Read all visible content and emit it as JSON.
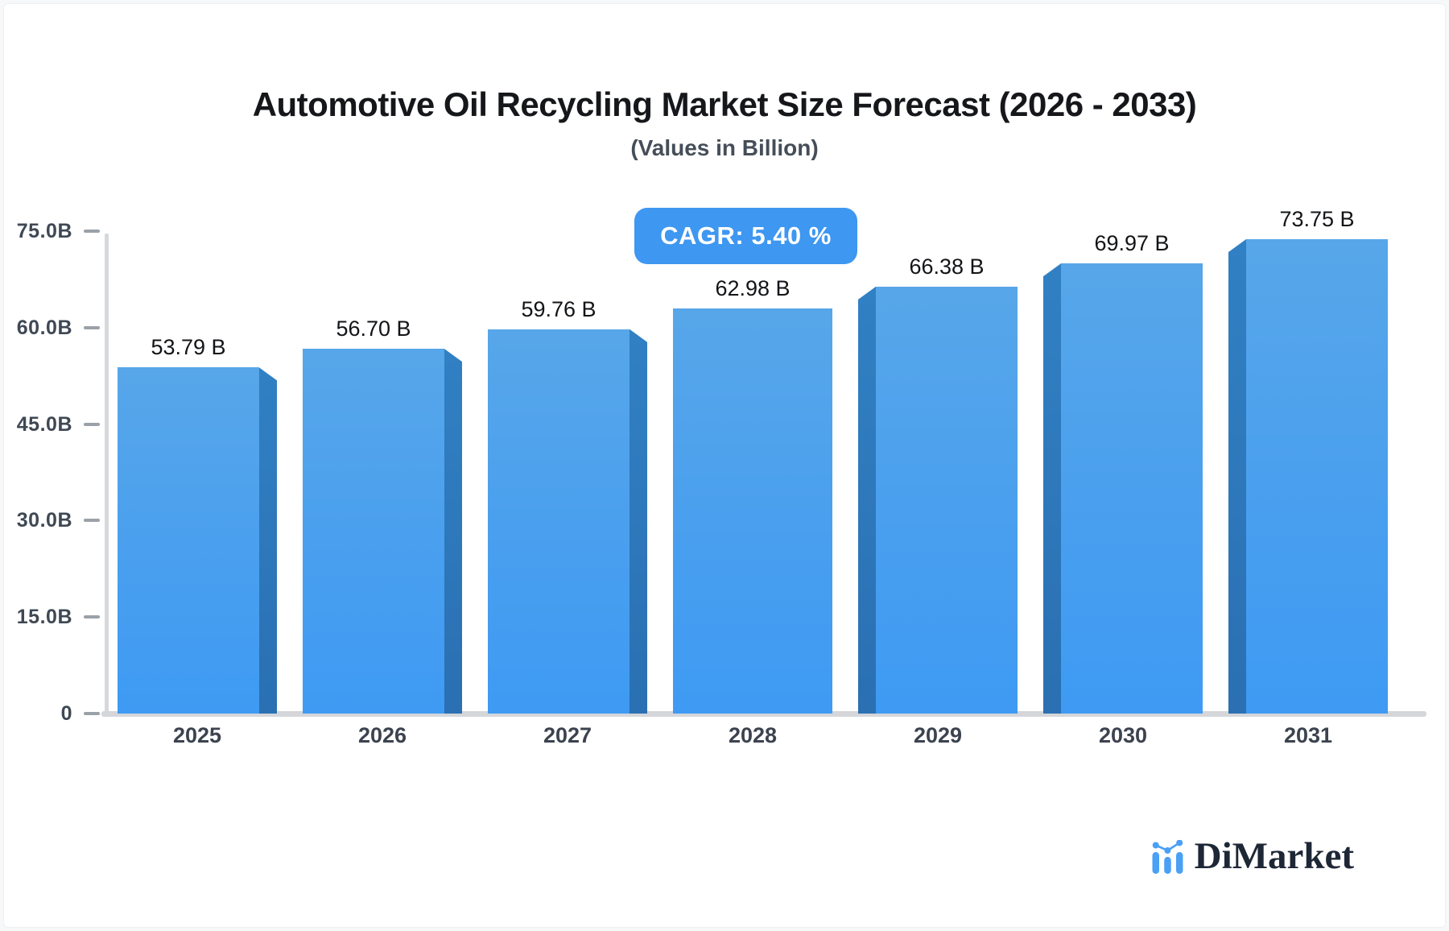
{
  "page": {
    "background_color": "#f7f8fa",
    "card_color": "#ffffff"
  },
  "header": {
    "title": "Automotive Oil Recycling Market Size Forecast (2026 - 2033)",
    "subtitle": "(Values in Billion)"
  },
  "badge": {
    "label": "CAGR: 5.40 %",
    "background_color": "#3e97f0",
    "text_color": "#ffffff"
  },
  "chart_data": {
    "type": "bar",
    "title": "Automotive Oil Recycling Market Size Forecast (2026 - 2033)",
    "subtitle": "(Values in Billion)",
    "cagr_percent": 5.4,
    "categories": [
      "2025",
      "2026",
      "2027",
      "2028",
      "2029",
      "2030",
      "2031"
    ],
    "values": [
      53.79,
      56.7,
      59.76,
      62.98,
      66.38,
      69.97,
      73.75
    ],
    "value_labels": [
      "53.79 B",
      "56.70 B",
      "59.76 B",
      "62.98 B",
      "66.38 B",
      "69.97 B",
      "73.75 B"
    ],
    "unit": "Billion USD",
    "xlabel": "",
    "ylabel": "",
    "ylim": [
      0,
      75
    ],
    "yticks": [
      {
        "value": 0,
        "label": "0"
      },
      {
        "value": 15,
        "label": "15.0B"
      },
      {
        "value": 30,
        "label": "30.0B"
      },
      {
        "value": 45,
        "label": "45.0B"
      },
      {
        "value": 60,
        "label": "60.0B"
      },
      {
        "value": 75,
        "label": "75.0B"
      }
    ],
    "grid": false,
    "legend": "none",
    "bar_style": "3d-beveled",
    "colors": {
      "bar_top": "#57a6e9",
      "bar_bottom": "#3e9af3",
      "bar_side": "#2d77bb",
      "axis_line": "#d5d7da",
      "tick_mark": "#9ba1a8",
      "tick_label": "#3f4854",
      "value_label": "#121417"
    }
  },
  "logo": {
    "text": "DiMarket",
    "icon": "bar-chart-logo-icon",
    "text_color": "#1d2736",
    "icon_color": "#4aa0f4"
  }
}
